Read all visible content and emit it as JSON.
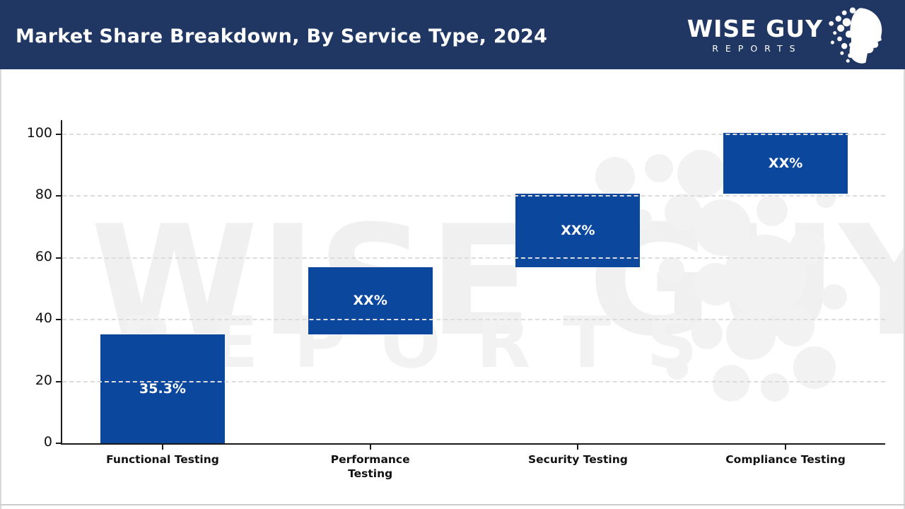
{
  "header": {
    "title": "Market Share Breakdown, By Service Type, 2024"
  },
  "logo": {
    "line1": "WISE GUY",
    "line2": "REPORTS"
  },
  "watermark": {
    "line1": "WISE GUY",
    "line2": "REPORTS"
  },
  "chart_data": {
    "type": "bar",
    "subtype": "floating-waterfall-segments",
    "title": "Market Share Breakdown, By Service Type, 2024",
    "categories": [
      "Functional Testing",
      "Performance\nTesting",
      "Security Testing",
      "Compliance Testing"
    ],
    "segments": [
      {
        "category": "Functional Testing",
        "start": 0,
        "end": 35.3,
        "label": "35.3%"
      },
      {
        "category": "Performance Testing",
        "start": 35.3,
        "end": 57.0,
        "label": "XX%"
      },
      {
        "category": "Security Testing",
        "start": 57.0,
        "end": 80.7,
        "label": "XX%"
      },
      {
        "category": "Compliance Testing",
        "start": 80.7,
        "end": 100.5,
        "label": "XX%"
      }
    ],
    "yticks": [
      0,
      20,
      40,
      60,
      80,
      100
    ],
    "ylim": [
      0,
      105
    ],
    "xlabel": "",
    "ylabel": "",
    "bar_color": "#0C479E",
    "grid": "horizontal-dashed",
    "legend": "none"
  },
  "colors": {
    "header_bg": "#203764",
    "bar": "#0C479E",
    "gridline": "#dcdcdc",
    "axis": "#1a1a1a",
    "watermark": "#f0f0f0"
  }
}
